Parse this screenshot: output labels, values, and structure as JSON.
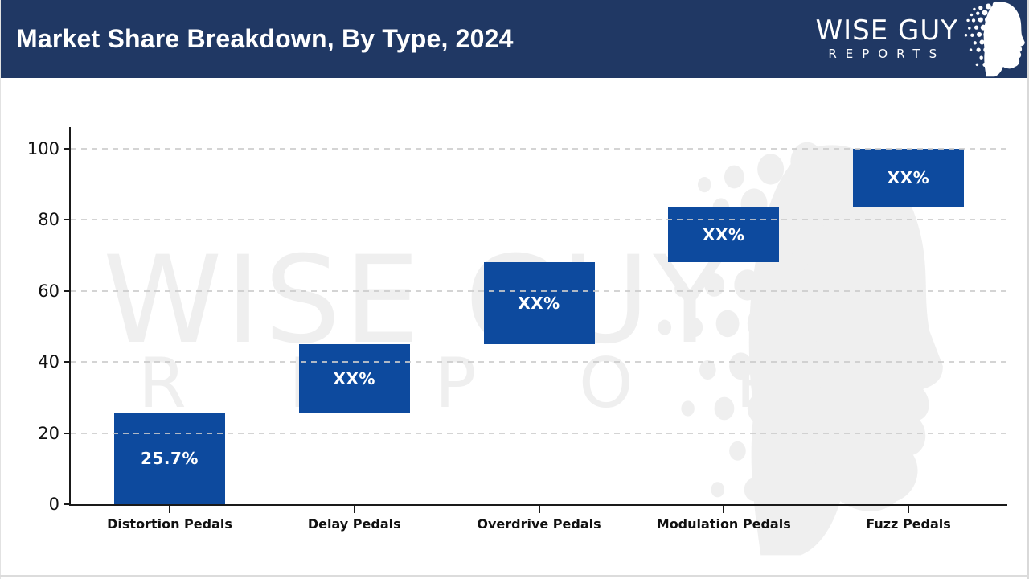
{
  "header": {
    "title": "Market Share Breakdown, By Type, 2024",
    "logo": {
      "line1": "WISE GUY",
      "line2": "REPORTS"
    }
  },
  "watermark": {
    "line1": "WISE GUY",
    "line2": "R E P O R T S"
  },
  "colors": {
    "header_bg": "#203864",
    "bar": "#0d4a9e",
    "bar_label": "#ffffff",
    "grid": "#cccccc",
    "axis": "#1a1a1a",
    "watermark": "#efefef",
    "logo_fg": "#ffffff"
  },
  "chart_data": {
    "type": "bar",
    "subtype": "waterfall-floating-bars",
    "title": "Market Share Breakdown, By Type, 2024",
    "categories": [
      "Distortion Pedals",
      "Delay Pedals",
      "Overdrive Pedals",
      "Modulation Pedals",
      "Fuzz Pedals"
    ],
    "segments": [
      {
        "category": "Distortion Pedals",
        "start": 0,
        "end": 25.7,
        "label": "25.7%"
      },
      {
        "category": "Delay Pedals",
        "start": 25.7,
        "end": 45,
        "label": "XX%"
      },
      {
        "category": "Overdrive Pedals",
        "start": 45,
        "end": 68,
        "label": "XX%"
      },
      {
        "category": "Modulation Pedals",
        "start": 68,
        "end": 83.5,
        "label": "XX%"
      },
      {
        "category": "Fuzz Pedals",
        "start": 83.5,
        "end": 100,
        "label": "XX%"
      }
    ],
    "xlabel": "",
    "ylabel": "",
    "ylim": [
      0,
      100
    ],
    "yticks": [
      0,
      20,
      40,
      60,
      80,
      100
    ],
    "grid": true,
    "grid_style": "dashed",
    "legend": "none"
  }
}
